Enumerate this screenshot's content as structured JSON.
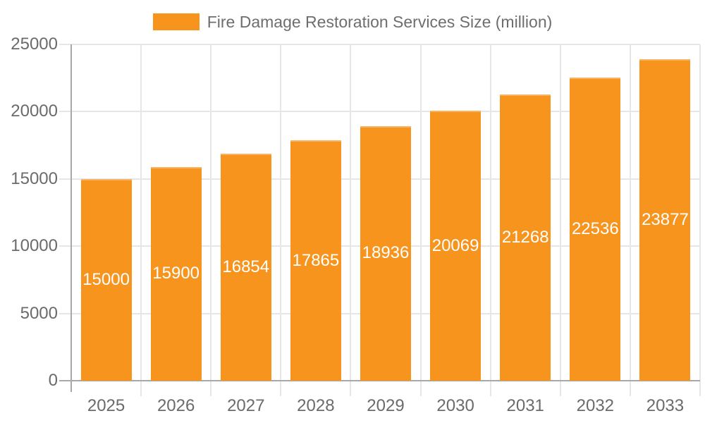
{
  "legend": {
    "label": "Fire Damage Restoration Services Size (million)"
  },
  "colors": {
    "bar": "#f7941e",
    "bar_border": "#f9b264",
    "grid": "#e6e6e6",
    "axis": "#a8a8a8",
    "tick_text": "#6b6b6b",
    "legend_text": "#6e6e6e",
    "value_text": "#ffffff",
    "background": "#ffffff"
  },
  "chart_data": {
    "type": "bar",
    "title": "Fire Damage Restoration Services Size (million)",
    "categories": [
      "2025",
      "2026",
      "2027",
      "2028",
      "2029",
      "2030",
      "2031",
      "2032",
      "2033"
    ],
    "values": [
      15000,
      15900,
      16854,
      17865,
      18936,
      20069,
      21268,
      22536,
      23877
    ],
    "series_name": "Fire Damage Restoration Services Size (million)",
    "xlabel": "",
    "ylabel": "",
    "ylim": [
      0,
      25000
    ],
    "yticks": [
      0,
      5000,
      10000,
      15000,
      20000,
      25000
    ],
    "grid": true,
    "legend_position": "top",
    "value_label_position": "inside-center"
  }
}
